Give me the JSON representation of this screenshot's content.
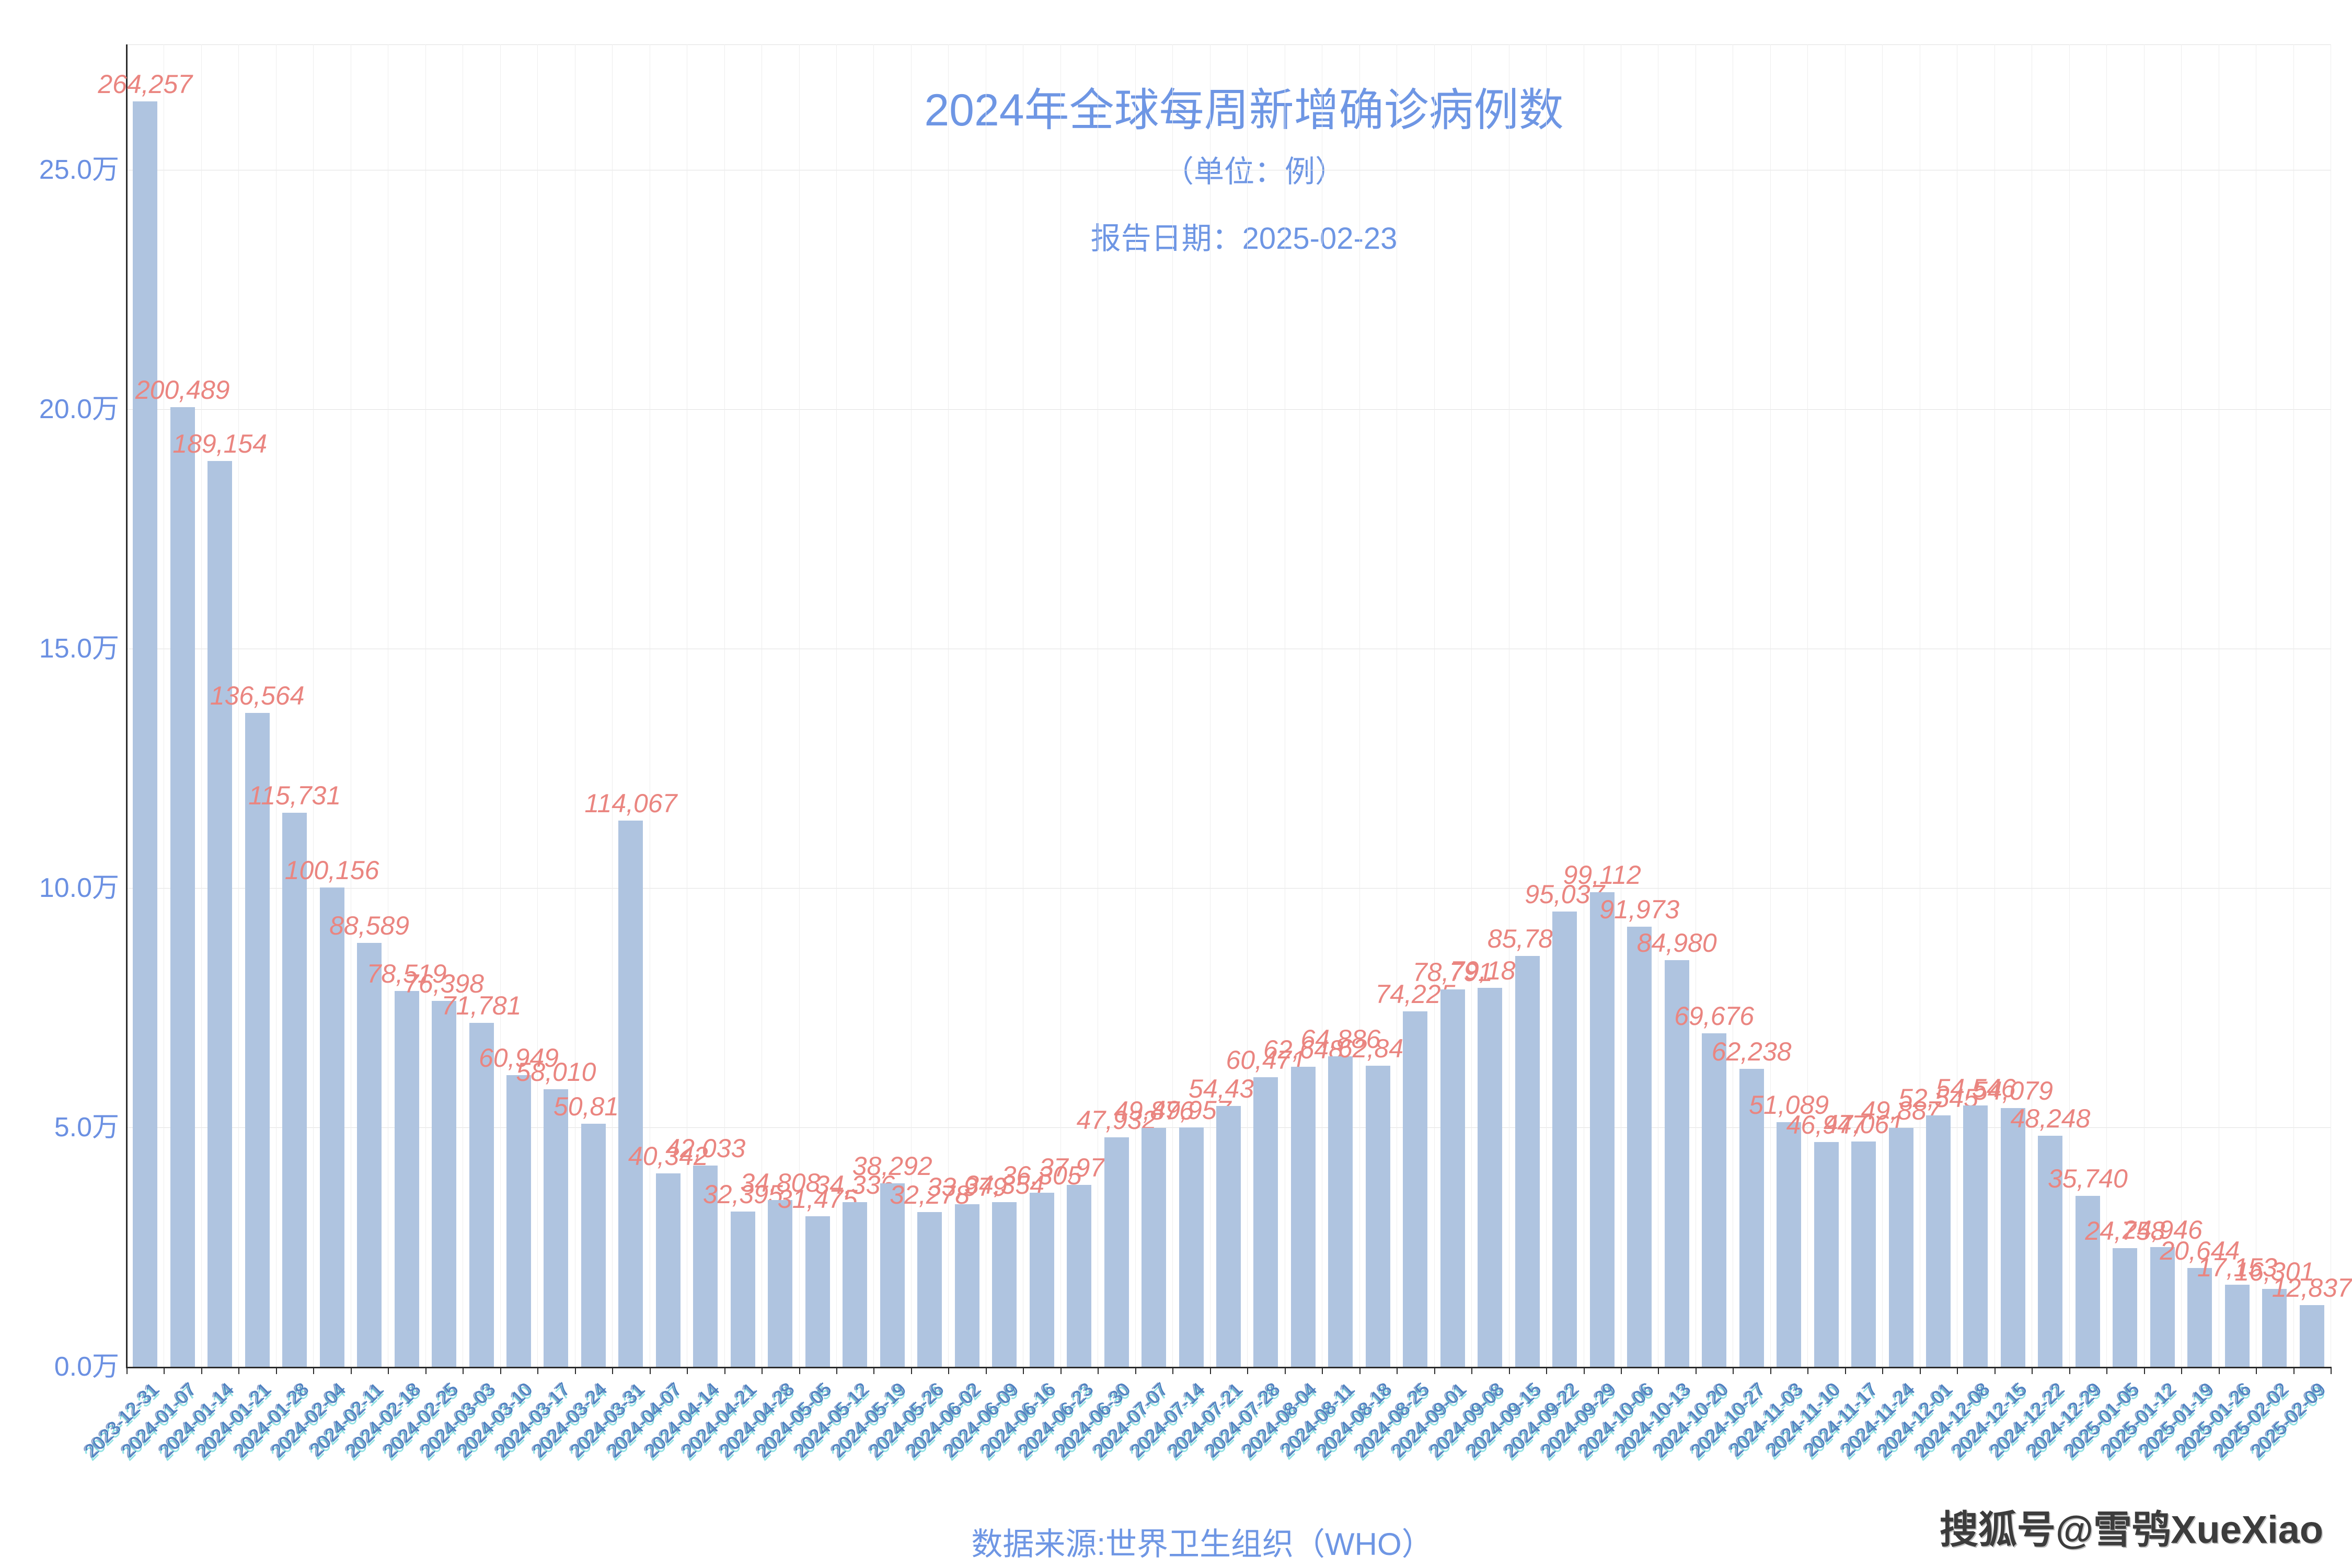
{
  "chart_data": {
    "type": "bar",
    "title": "2024年全球每周新增确诊病例数",
    "subtitle": "（单位：例）",
    "report_date_line": "报告日期：2025-02-23",
    "source_note": "数据来源:世界卫生组织（WHO）",
    "watermark": "搜狐号@雪鸮XueXiao",
    "xlabel": "",
    "ylabel": "",
    "ylim": [
      0,
      250000
    ],
    "grid": true,
    "legend": "none",
    "y_tick_labels": [
      "0.0万",
      "5.0万",
      "10.0万",
      "15.0万",
      "20.0万",
      "25.0万"
    ],
    "y_tick_values": [
      0,
      50000,
      100000,
      150000,
      200000,
      250000
    ],
    "categories": [
      "2023-12-31",
      "2024-01-07",
      "2024-01-14",
      "2024-01-21",
      "2024-01-28",
      "2024-02-04",
      "2024-02-11",
      "2024-02-18",
      "2024-02-25",
      "2024-03-03",
      "2024-03-10",
      "2024-03-17",
      "2024-03-24",
      "2024-03-31",
      "2024-04-07",
      "2024-04-14",
      "2024-04-21",
      "2024-04-28",
      "2024-05-05",
      "2024-05-12",
      "2024-05-19",
      "2024-05-26",
      "2024-06-02",
      "2024-06-09",
      "2024-06-16",
      "2024-06-23",
      "2024-06-30",
      "2024-07-07",
      "2024-07-14",
      "2024-07-21",
      "2024-07-28",
      "2024-08-04",
      "2024-08-11",
      "2024-08-18",
      "2024-08-25",
      "2024-09-01",
      "2024-09-08",
      "2024-09-15",
      "2024-09-22",
      "2024-09-29",
      "2024-10-06",
      "2024-10-13",
      "2024-10-20",
      "2024-10-27",
      "2024-11-03",
      "2024-11-10",
      "2024-11-17",
      "2024-11-24",
      "2024-12-01",
      "2024-12-08",
      "2024-12-15",
      "2024-12-22",
      "2024-12-29",
      "2025-01-05",
      "2025-01-12",
      "2025-01-19",
      "2025-01-26",
      "2025-02-02",
      "2025-02-09"
    ],
    "values": [
      264257,
      200489,
      189154,
      136564,
      115731,
      100156,
      88589,
      78519,
      76398,
      71781,
      60949,
      58010,
      50818,
      114067,
      40342,
      42033,
      32395,
      34808,
      31475,
      34336,
      38292,
      32278,
      33979,
      34354,
      36305,
      37979,
      47932,
      49876,
      49957,
      54439,
      60471,
      62648,
      64886,
      62840,
      74225,
      78791,
      79189,
      85781,
      95037,
      99112,
      91973,
      84980,
      69676,
      62238,
      51089,
      46947,
      47061,
      49887,
      52545,
      54546,
      54079,
      48248,
      35740,
      24758,
      24946,
      20644,
      17153,
      16301,
      12837
    ],
    "colors": {
      "bar_fill": "#afc4e0",
      "data_label": "#ea8580",
      "title_text": "#6e96e4",
      "y_axis_text": "#6b90e2",
      "x_axis_text": "#4c80c0",
      "x_axis_shadow_cyan": "#23c8c8",
      "axis_line": "#2b2b2b",
      "gridline": "#e0e0e0",
      "watermark_text": "#3c3c3c",
      "background": "#ffffff"
    }
  }
}
